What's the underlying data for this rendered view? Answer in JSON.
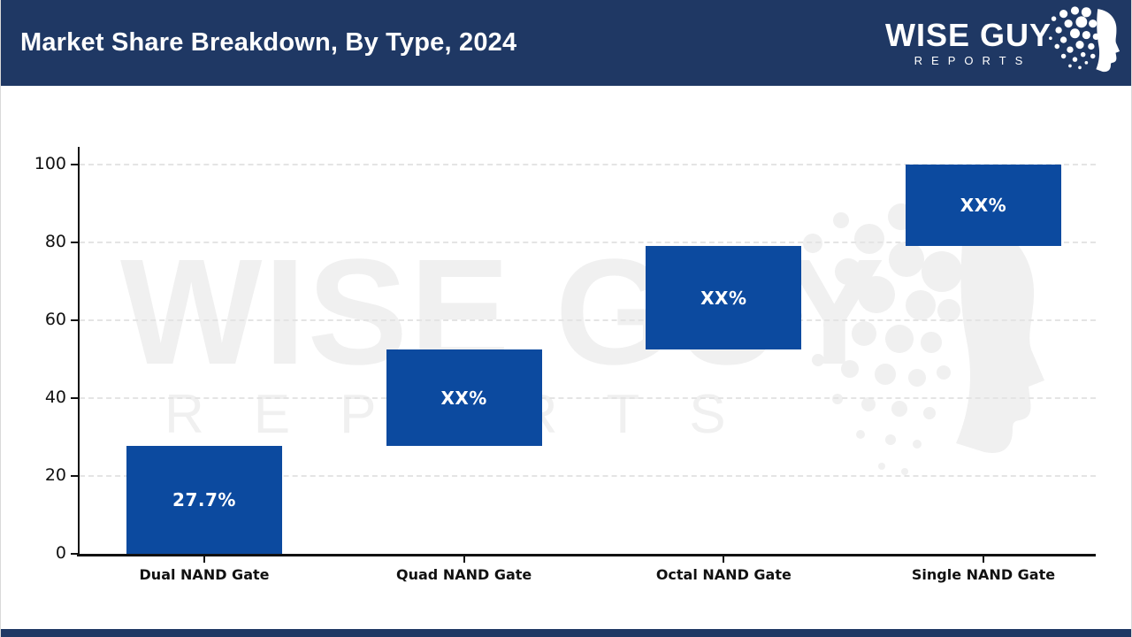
{
  "header": {
    "title": "Market Share Breakdown, By Type, 2024",
    "bg_color": "#1F3864"
  },
  "logo": {
    "name_line": "WISE GUY",
    "sub_line": "REPORTS"
  },
  "watermark": {
    "name_line": "WISE GUY",
    "sub_line": "REPORTS"
  },
  "chart_data": {
    "type": "bar",
    "variant": "floating-waterfall",
    "title": "Market Share Breakdown, By Type, 2024",
    "categories": [
      "Dual NAND Gate",
      "Quad NAND Gate",
      "Octal NAND Gate",
      "Single NAND Gate"
    ],
    "segments": [
      {
        "category": "Dual NAND Gate",
        "from": 0,
        "to": 27.7,
        "label": "27.7%"
      },
      {
        "category": "Quad NAND Gate",
        "from": 27.7,
        "to": 52.5,
        "label": "XX%"
      },
      {
        "category": "Octal NAND Gate",
        "from": 52.5,
        "to": 79.0,
        "label": "XX%"
      },
      {
        "category": "Single NAND Gate",
        "from": 79.0,
        "to": 100,
        "label": "XX%"
      }
    ],
    "ylim": [
      0,
      100
    ],
    "yticks": [
      0,
      20,
      40,
      60,
      80,
      100
    ],
    "xlabel": "",
    "ylabel": "",
    "grid": "horizontal-dashed",
    "legend": "none",
    "bar_color": "#0C4A9F",
    "bar_label_color": "#FFFFFF",
    "axis_color": "#111111"
  }
}
